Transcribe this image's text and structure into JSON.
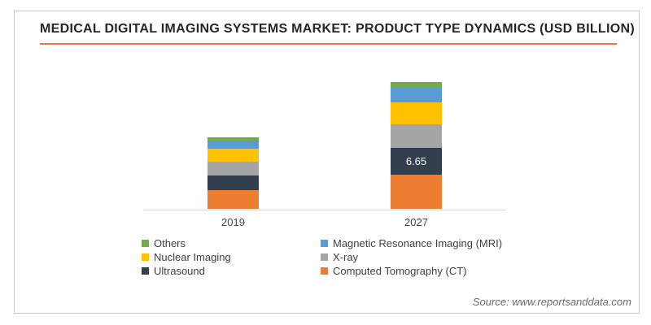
{
  "header": {
    "title": "MEDICAL DIGITAL IMAGING SYSTEMS MARKET: PRODUCT TYPE DYNAMICS (USD BILLION)",
    "accent_color": "#ed7d31"
  },
  "chart_data": {
    "type": "bar",
    "stacked": true,
    "title": "Medical Digital Imaging Systems Market: Product Type Dynamics",
    "unit": "USD Billion",
    "categories": [
      "2019",
      "2027"
    ],
    "series": [
      {
        "name": "Computed Tomography (CT)",
        "color": "#ed7d31",
        "values": [
          4.6,
          8.4
        ]
      },
      {
        "name": "Ultrasound",
        "color": "#333f4f",
        "values": [
          3.7,
          6.65
        ]
      },
      {
        "name": "X-ray",
        "color": "#a5a5a5",
        "values": [
          3.3,
          5.8
        ]
      },
      {
        "name": "Nuclear Imaging",
        "color": "#ffc000",
        "values": [
          3.3,
          5.3
        ]
      },
      {
        "name": "Magnetic Resonance Imaging (MRI)",
        "color": "#5b9bd5",
        "values": [
          2.0,
          3.9
        ]
      },
      {
        "name": "Others",
        "color": "#70ad47",
        "values": [
          0.75,
          1.2
        ]
      }
    ],
    "data_labels": [
      {
        "series": "Ultrasound",
        "category": "2027",
        "text": "6.65"
      }
    ],
    "legend": {
      "position": "bottom",
      "columns": 2,
      "items_display_order": [
        "Others",
        "Magnetic Resonance Imaging (MRI)",
        "Nuclear Imaging",
        "X-ray",
        "Ultrasound",
        "Computed Tomography (CT)"
      ]
    },
    "axes": {
      "x_labels": [
        "2019",
        "2027"
      ],
      "y_axis_visible": false,
      "gridlines": false,
      "baseline_color": "#d9d9d9"
    }
  },
  "footer": {
    "source": "Source: www.reportsanddata.com"
  }
}
